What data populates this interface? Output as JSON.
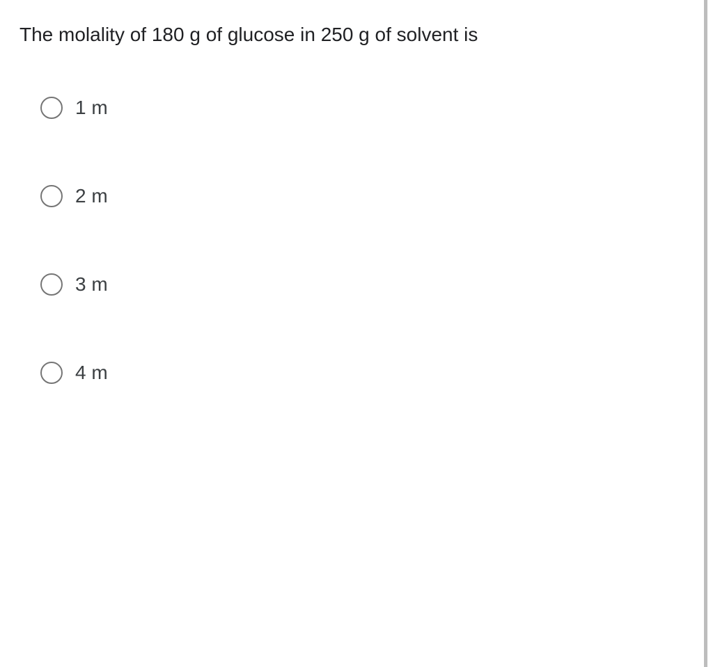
{
  "question": {
    "text": "The molality of 180 g of glucose in 250 g of solvent is",
    "text_color": "#202124",
    "fontsize": 28
  },
  "options": [
    {
      "label": "1 m"
    },
    {
      "label": "2 m"
    },
    {
      "label": "3 m"
    },
    {
      "label": "4 m"
    }
  ],
  "styling": {
    "background_color": "#ffffff",
    "radio_border_color": "#757575",
    "radio_size": 32,
    "option_text_color": "#3c4043",
    "option_fontsize": 28,
    "right_border_color": "#bdbdbd",
    "option_spacing": 95
  }
}
